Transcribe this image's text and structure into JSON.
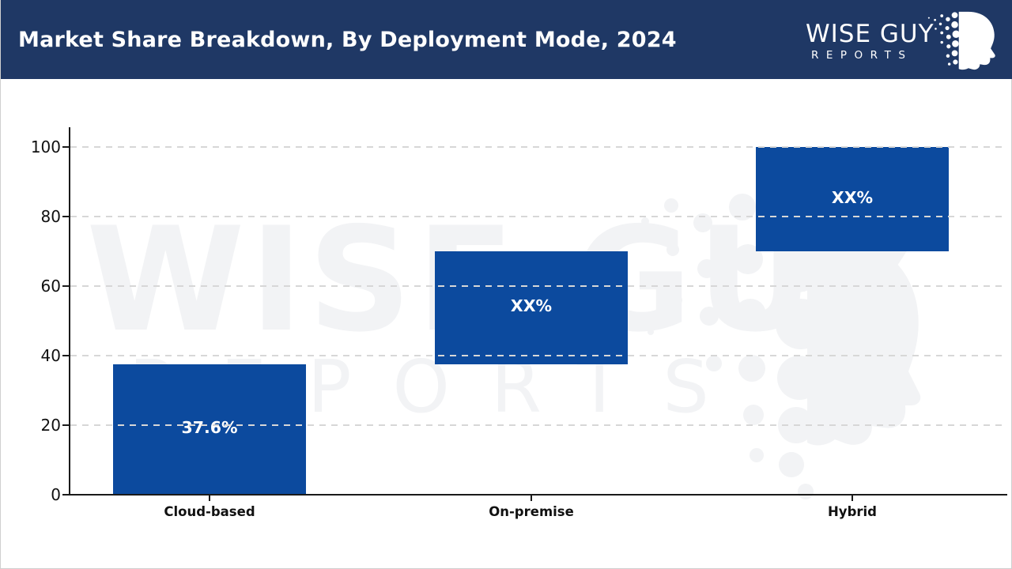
{
  "header": {
    "title": "Market Share Breakdown, By Deployment Mode, 2024",
    "bg_color": "#1f3865",
    "logo": {
      "line1": "WISE GUY",
      "line2": "REPORTS"
    }
  },
  "branding": {
    "watermark_line1": "WISE GUY",
    "watermark_line2": "REPORTS"
  },
  "chart_data": {
    "type": "bar",
    "subtype": "waterfall",
    "title": "Market Share Breakdown, By Deployment Mode, 2024",
    "categories": [
      "Cloud-based",
      "On-premise",
      "Hybrid"
    ],
    "segments": [
      {
        "category": "Cloud-based",
        "from": 0,
        "to": 37.6,
        "label": "37.6%"
      },
      {
        "category": "On-premise",
        "from": 37.6,
        "to": 70,
        "label": "XX%"
      },
      {
        "category": "Hybrid",
        "from": 70,
        "to": 100,
        "label": "XX%"
      }
    ],
    "xlabel": "",
    "ylabel": "",
    "ylim": [
      0,
      100
    ],
    "yticks": [
      0,
      20,
      40,
      60,
      80,
      100
    ],
    "grid": "horizontal-dashed",
    "legend": "none",
    "bar_color": "#0c4a9e",
    "bar_label_color": "#ffffff",
    "axis_color": "#1a1a1a",
    "gridline_color": "#d7d7d7"
  }
}
